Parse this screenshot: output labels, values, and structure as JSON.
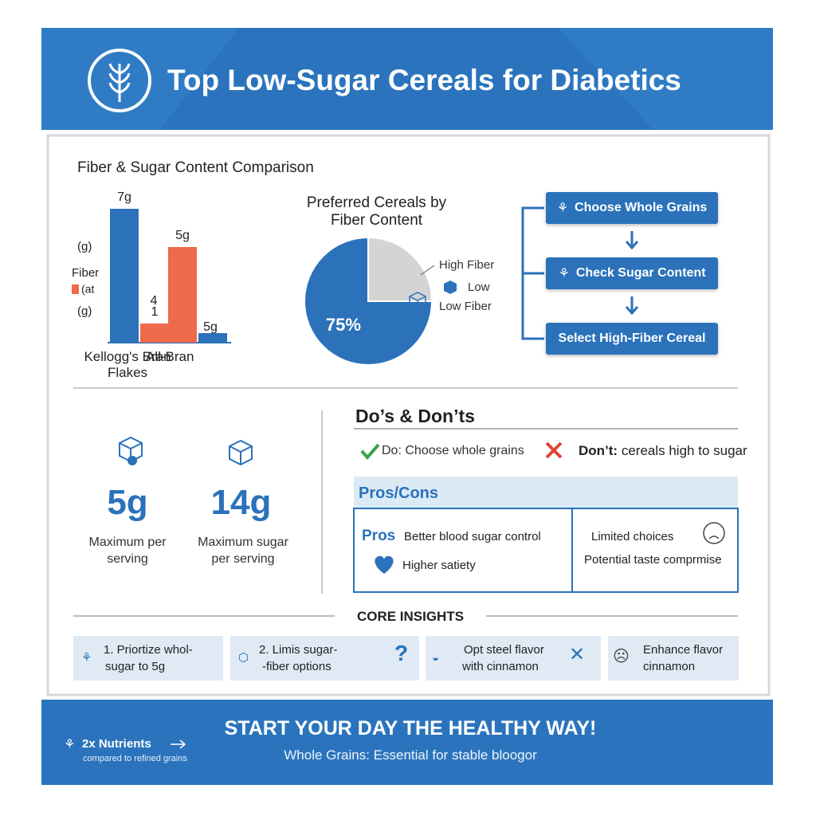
{
  "header": {
    "title": "Top Low-Sugar Cereals for Diabetics"
  },
  "chart_data": [
    {
      "type": "bar",
      "title": "Fiber & Sugar Content Comparison",
      "categories": [
        "Kellogg's Bran Flakes",
        "All-Bran"
      ],
      "series": [
        {
          "name": "Fiber",
          "color": "#2b72ba",
          "values": [
            7,
            0.5
          ],
          "value_labels": [
            "7g",
            null
          ]
        },
        {
          "name": "(at",
          "color": "#ee6a4a",
          "values": [
            1,
            5
          ],
          "value_labels": [
            "1",
            "5g"
          ]
        }
      ],
      "axis_labels": [
        "(g)",
        "(g)"
      ],
      "annotations": [
        "4",
        "5g"
      ]
    },
    {
      "type": "pie",
      "title": "Preferred Cereals by Fiber Content",
      "categories": [
        "High Fiber",
        "Low Fiber"
      ],
      "values": [
        75,
        25
      ],
      "value_labels": [
        "75%",
        null
      ],
      "colors": [
        "#2b72ba",
        "#d4d4d4"
      ],
      "annotations": [
        "Low"
      ]
    }
  ],
  "flow": {
    "steps": [
      "Choose Whole Grains",
      "Check Sugar Content",
      "Select High-Fiber Cereal"
    ]
  },
  "stats": [
    {
      "value": "5g",
      "label": "Maximum per serving"
    },
    {
      "value": "14g",
      "label": "Maximum sugar per serving"
    }
  ],
  "dos_donts": {
    "title": "Do’s & Don’ts",
    "do_prefix": "Do:",
    "do": "Choose whole grains",
    "dont_prefix": "Don’t:",
    "dont": "cereals high to sugar"
  },
  "pros_cons": {
    "title": "Pros/Cons",
    "pros_label": "Pros",
    "pros": [
      "Better blood sugar control",
      "Higher satiety"
    ],
    "cons": [
      "Limited choices",
      "Potential taste comprmise"
    ]
  },
  "insights": {
    "title": "CORE INSIGHTS",
    "items": [
      [
        "1. Priortize whol-",
        "sugar to 5g"
      ],
      [
        "2. Limis sugar-",
        "-fiber options"
      ],
      [
        "Opt steel flavor",
        "with cinnamon"
      ],
      [
        "Enhance flavor",
        "cinnamon"
      ]
    ]
  },
  "footer": {
    "stat": "2x Nutrients",
    "stat_note": "compared to refined grains",
    "headline": "START YOUR DAY THE HEALTHY WAY!",
    "subtitle": "Whole Grains: Essential for stable bloogor"
  }
}
